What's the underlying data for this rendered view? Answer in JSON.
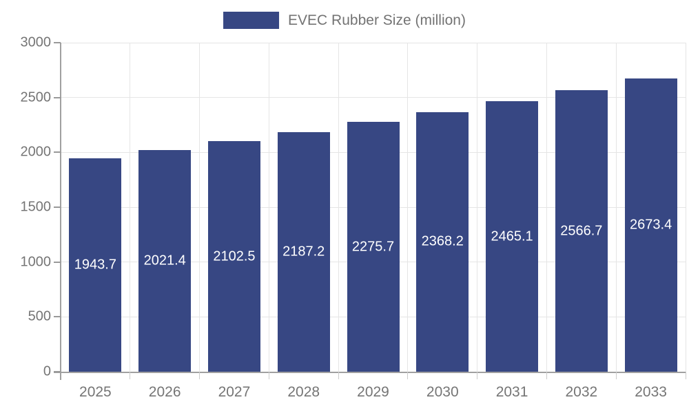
{
  "chart_data": {
    "type": "bar",
    "title": "EVEC Rubber Size (million)",
    "legend": {
      "label": "EVEC Rubber Size (million)",
      "position": "top"
    },
    "categories": [
      "2025",
      "2026",
      "2027",
      "2028",
      "2029",
      "2030",
      "2031",
      "2032",
      "2033"
    ],
    "series": [
      {
        "name": "EVEC Rubber Size (million)",
        "values": [
          1943.7,
          2021.4,
          2102.5,
          2187.2,
          2275.7,
          2368.2,
          2465.1,
          2566.7,
          2673.4
        ]
      }
    ],
    "value_labels": [
      "1943.7",
      "2021.4",
      "2102.5",
      "2187.2",
      "2275.7",
      "2368.2",
      "2465.1",
      "2566.7",
      "2673.4"
    ],
    "xlabel": "",
    "ylabel": "",
    "ylim": [
      0,
      3000
    ],
    "y_ticks": [
      0,
      500,
      1000,
      1500,
      2000,
      2500,
      3000
    ],
    "grid": true,
    "bar_label_position": "inside-middle",
    "colors": {
      "bar": "#374783",
      "grid_line": "#e5e5e5",
      "axis_line": "#a0a0a0",
      "y_tick": "#999999",
      "x_tick": "#cccccc",
      "axis_text": "#757575",
      "bar_label_text": "#ffffff",
      "legend_text": "#737373"
    }
  }
}
